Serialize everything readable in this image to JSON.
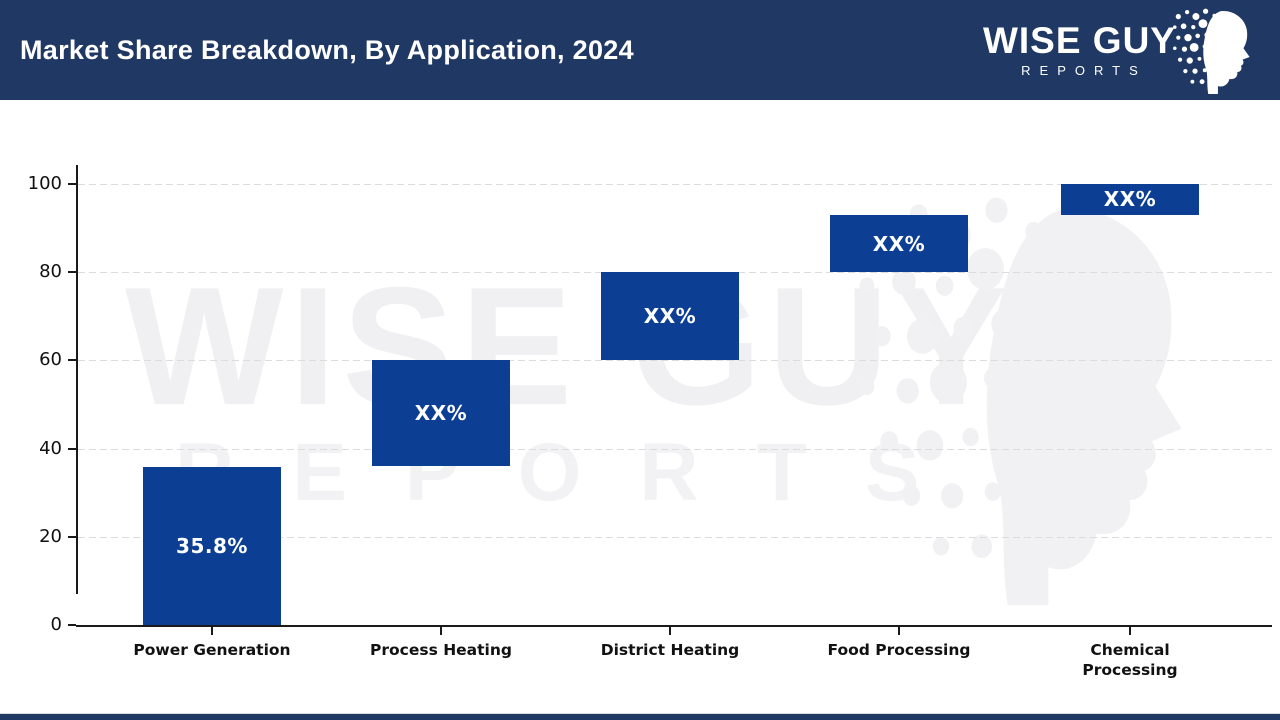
{
  "header": {
    "title": "Market Share Breakdown, By Application, 2024",
    "logo": {
      "line1": "WISE GUY",
      "line2": "REPORTS"
    }
  },
  "watermark": {
    "line1": "WISE GUY",
    "line2": "REPORTS"
  },
  "chart_data": {
    "type": "bar",
    "variant": "waterfall",
    "title": "Market Share Breakdown, By Application, 2024",
    "categories": [
      "Power Generation",
      "Process Heating",
      "District Heating",
      "Food Processing",
      "Chemical Processing"
    ],
    "segments": [
      {
        "category": "Power Generation",
        "start": 0,
        "end": 35.8,
        "label": "35.8%"
      },
      {
        "category": "Process Heating",
        "start": 36,
        "end": 60,
        "label": "XX%"
      },
      {
        "category": "District Heating",
        "start": 60,
        "end": 80,
        "label": "XX%"
      },
      {
        "category": "Food Processing",
        "start": 80,
        "end": 93,
        "label": "XX%"
      },
      {
        "category": "Chemical Processing",
        "start": 93,
        "end": 100,
        "label": "XX%"
      }
    ],
    "xlabel": "",
    "ylabel": "",
    "yticks": [
      0,
      20,
      40,
      60,
      80,
      100
    ],
    "ylim": [
      0,
      105
    ],
    "grid": "horizontal-dashed",
    "legend": "none",
    "colors": {
      "bar": "#0c3f94",
      "bar_label": "#ffffff",
      "axis": "#1a1a1a",
      "grid": "#dcdcdc",
      "header_bg": "#203864",
      "watermark": "#f0f0f2"
    }
  }
}
